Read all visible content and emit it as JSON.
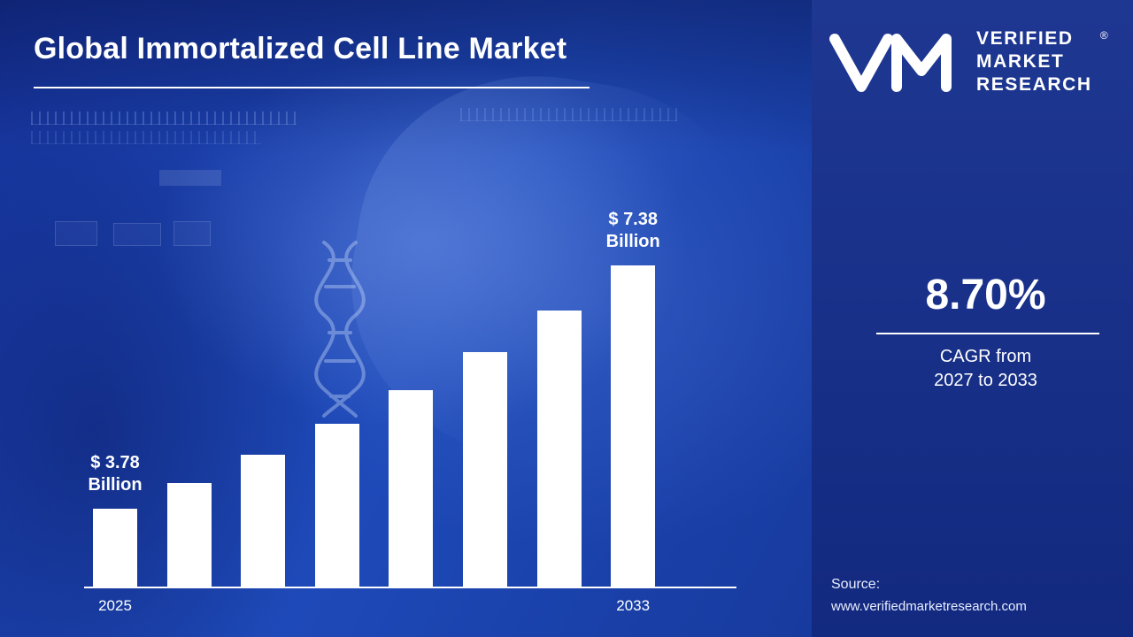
{
  "title": "Global Immortalized Cell Line Market",
  "chart_data": {
    "type": "bar",
    "categories": [
      "2025",
      "",
      "",
      "",
      "",
      "",
      "",
      "2033"
    ],
    "values": [
      3.78,
      4.16,
      4.58,
      5.04,
      5.54,
      6.1,
      6.71,
      7.38
    ],
    "value_unit": "USD Billion",
    "annotations": [
      {
        "index": 0,
        "lines": [
          "$ 3.78",
          "Billion"
        ]
      },
      {
        "index": 7,
        "lines": [
          "$ 7.38",
          "Billion"
        ]
      }
    ],
    "x_tick_labels": [
      {
        "index": 0,
        "label": "2025"
      },
      {
        "index": 7,
        "label": "2033"
      }
    ],
    "ylim": [
      3.2,
      7.6
    ],
    "grid": false,
    "legend": false,
    "bar_color": "#ffffff",
    "title": "Global Immortalized Cell Line Market"
  },
  "side_panel": {
    "logo": {
      "lines": [
        "VERIFIED",
        "MARKET",
        "RESEARCH"
      ],
      "registered_mark": "®"
    },
    "cagr_value": "8.70%",
    "cagr_label_line1": "CAGR from",
    "cagr_label_line2": "2027 to 2033",
    "source_label": "Source:",
    "source_url": "www.verifiedmarketresearch.com"
  },
  "colors": {
    "left_background": "#1c40ae",
    "right_background": "#152f8d",
    "bar": "#ffffff",
    "text": "#ffffff"
  }
}
